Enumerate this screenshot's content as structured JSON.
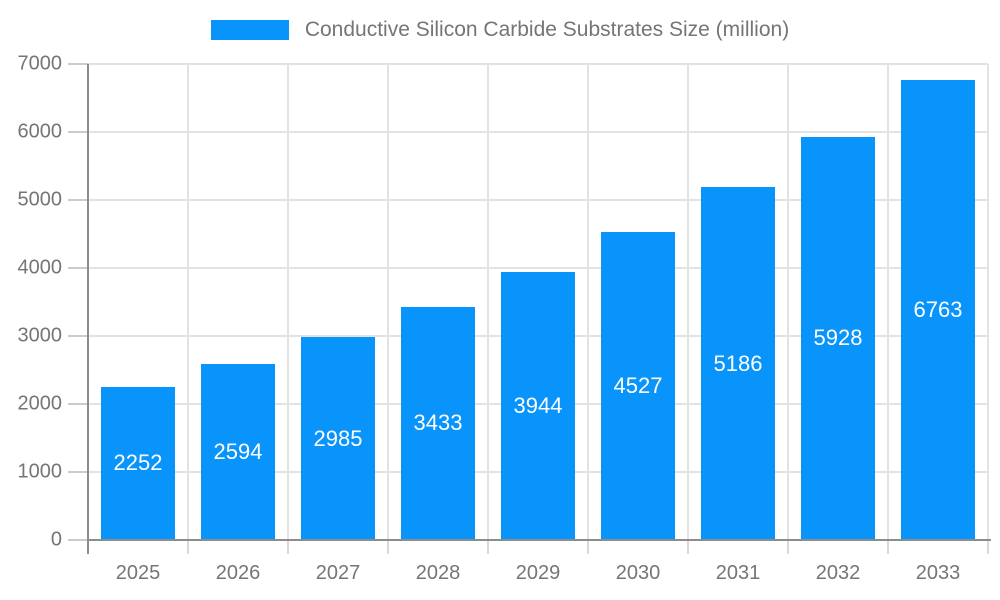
{
  "legend": {
    "label": "Conductive Silicon Carbide Substrates Size (million)"
  },
  "chart_data": {
    "type": "bar",
    "title": "Conductive Silicon Carbide Substrates Size (million)",
    "categories": [
      "2025",
      "2026",
      "2027",
      "2028",
      "2029",
      "2030",
      "2031",
      "2032",
      "2033"
    ],
    "values": [
      2252,
      2594,
      2985,
      3433,
      3944,
      4527,
      5186,
      5928,
      6763
    ],
    "xlabel": "",
    "ylabel": "",
    "ylim": [
      0,
      7000
    ],
    "ytick_step": 1000,
    "ytick_labels": [
      "0",
      "1000",
      "2000",
      "3000",
      "4000",
      "5000",
      "6000",
      "7000"
    ],
    "grid": true,
    "legend_position": "top-center",
    "value_labels_position": "inside-center"
  },
  "colors": {
    "bar": "#0894fa",
    "bar_value_label": "#ffffff",
    "grid": "#e3e3e3",
    "axis": "#8c8c8c",
    "tick": "#cccccc",
    "text": "#757575",
    "background": "#ffffff"
  }
}
